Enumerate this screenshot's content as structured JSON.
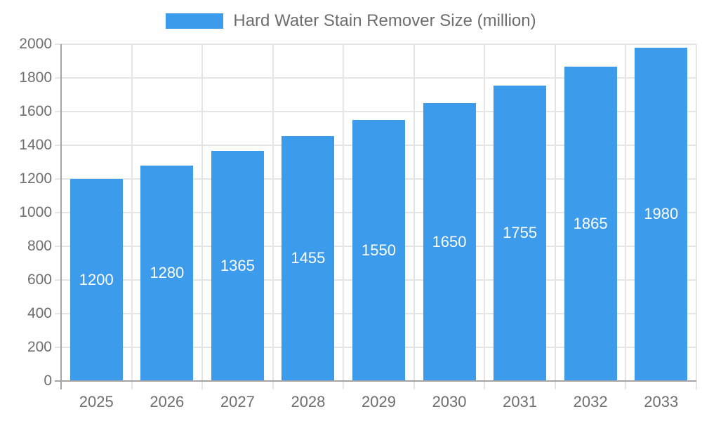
{
  "chart_data": {
    "type": "bar",
    "categories": [
      "2025",
      "2026",
      "2027",
      "2028",
      "2029",
      "2030",
      "2031",
      "2032",
      "2033"
    ],
    "series": [
      {
        "name": "Hard Water Stain Remover Size (million)",
        "values": [
          1200,
          1280,
          1365,
          1455,
          1550,
          1650,
          1755,
          1865,
          1980
        ]
      }
    ],
    "xlabel": "",
    "ylabel": "",
    "ylim": [
      0,
      2000
    ],
    "ytick_step": 200,
    "grid": true,
    "legend_position": "top",
    "value_label_position": "inside-middle"
  },
  "colors": {
    "bar": "#3D9BEC",
    "grid_line": "#E5E5E5",
    "axis_line": "#A5A5A5",
    "tick_text": "#6E6E6E",
    "legend_text": "#6E6E6E",
    "value_text": "#FFFFFF",
    "background": "#FFFFFF"
  }
}
